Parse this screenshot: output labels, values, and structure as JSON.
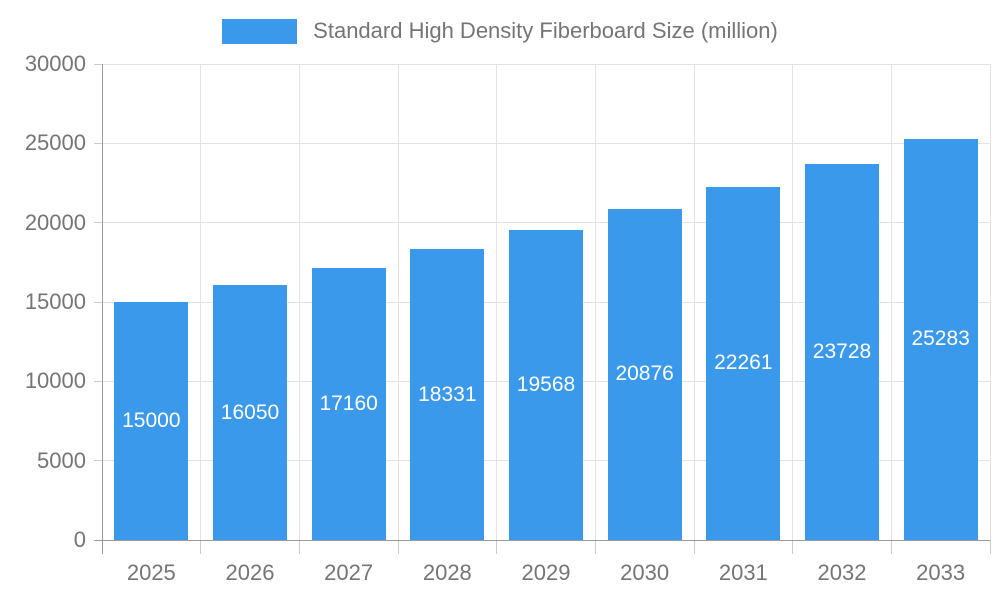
{
  "chart_data": {
    "type": "bar",
    "title": "Standard High Density Fiberboard Size (million)",
    "legend": [
      "Standard High Density Fiberboard Size (million)"
    ],
    "legend_position": "top-center",
    "categories": [
      "2025",
      "2026",
      "2027",
      "2028",
      "2029",
      "2030",
      "2031",
      "2032",
      "2033"
    ],
    "series": [
      {
        "name": "Standard High Density Fiberboard Size (million)",
        "values": [
          15000,
          16050,
          17160,
          18331,
          19568,
          20876,
          22261,
          23728,
          25283
        ]
      }
    ],
    "bar_labels": [
      "15000",
      "16050",
      "17160",
      "18331",
      "19568",
      "20876",
      "22261",
      "23728",
      "25283"
    ],
    "bar_label_position": "inside-center",
    "xlabel": "",
    "ylabel": "",
    "ylim": [
      0,
      30000
    ],
    "y_ticks": [
      0,
      5000,
      10000,
      15000,
      20000,
      25000,
      30000
    ],
    "y_tick_labels": [
      "0",
      "5000",
      "10000",
      "15000",
      "20000",
      "25000",
      "30000"
    ],
    "grid": true
  },
  "colors": {
    "bar": "#3B99EC",
    "grid": "#E3E3E3",
    "tick": "#CCCCCC",
    "axis": "#9A9A9A",
    "text": "#757575",
    "bar_label": "#FFFFFF",
    "background": "#FFFFFF"
  }
}
